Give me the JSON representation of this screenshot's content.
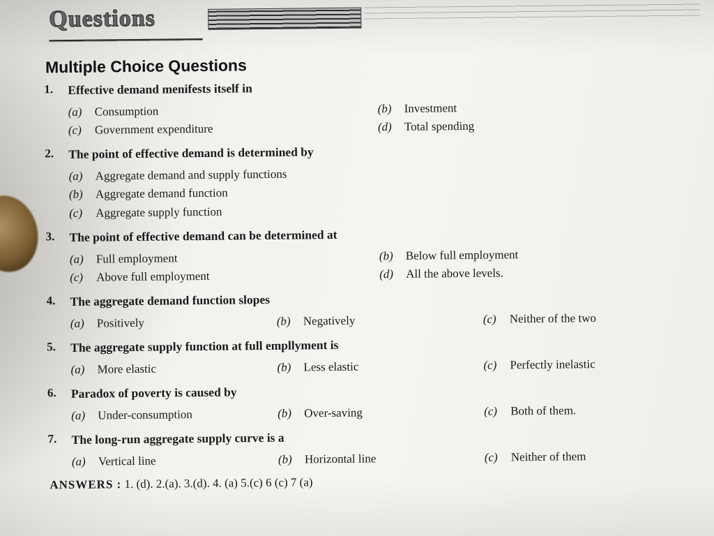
{
  "header": {
    "title": "Questions"
  },
  "section_title": "Multiple Choice Questions",
  "questions": [
    {
      "stem": "Effective demand menifests itself in",
      "layout": "grid2",
      "options": [
        {
          "label": "(a)",
          "text": "Consumption"
        },
        {
          "label": "(b)",
          "text": "Investment"
        },
        {
          "label": "(c)",
          "text": "Government expenditure"
        },
        {
          "label": "(d)",
          "text": "Total spending"
        }
      ]
    },
    {
      "stem": "The point of effective demand is determined by",
      "layout": "stack",
      "options": [
        {
          "label": "(a)",
          "text": "Aggregate demand and supply functions"
        },
        {
          "label": "(b)",
          "text": "Aggregate demand function"
        },
        {
          "label": "(c)",
          "text": "Aggregate supply function"
        }
      ]
    },
    {
      "stem": "The point of effective demand can be determined at",
      "layout": "grid2",
      "options": [
        {
          "label": "(a)",
          "text": "Full employment"
        },
        {
          "label": "(b)",
          "text": "Below full employment"
        },
        {
          "label": "(c)",
          "text": "Above full employment"
        },
        {
          "label": "(d)",
          "text": "All the above levels."
        }
      ]
    },
    {
      "stem": "The aggregate demand function slopes",
      "layout": "grid3",
      "options": [
        {
          "label": "(a)",
          "text": "Positively"
        },
        {
          "label": "(b)",
          "text": "Negatively"
        },
        {
          "label": "(c)",
          "text": "Neither of the two"
        }
      ]
    },
    {
      "stem": "The aggregate supply function at full empllyment is",
      "layout": "grid3",
      "options": [
        {
          "label": "(a)",
          "text": "More elastic"
        },
        {
          "label": "(b)",
          "text": "Less elastic"
        },
        {
          "label": "(c)",
          "text": "Perfectly inelastic"
        }
      ]
    },
    {
      "stem": "Paradox of poverty is caused by",
      "layout": "grid3",
      "options": [
        {
          "label": "(a)",
          "text": "Under-consumption"
        },
        {
          "label": "(b)",
          "text": "Over-saving"
        },
        {
          "label": "(c)",
          "text": "Both of them."
        }
      ]
    },
    {
      "stem": "The long-run aggregate supply curve is a",
      "layout": "grid3",
      "options": [
        {
          "label": "(a)",
          "text": "Vertical line"
        },
        {
          "label": "(b)",
          "text": "Horizontal line"
        },
        {
          "label": "(c)",
          "text": "Neither of them"
        }
      ]
    }
  ],
  "answers": {
    "label": "ANSWERS :",
    "text": "1. (d). 2.(a). 3.(d). 4. (a)  5.(c)  6 (c)  7  (a)"
  }
}
